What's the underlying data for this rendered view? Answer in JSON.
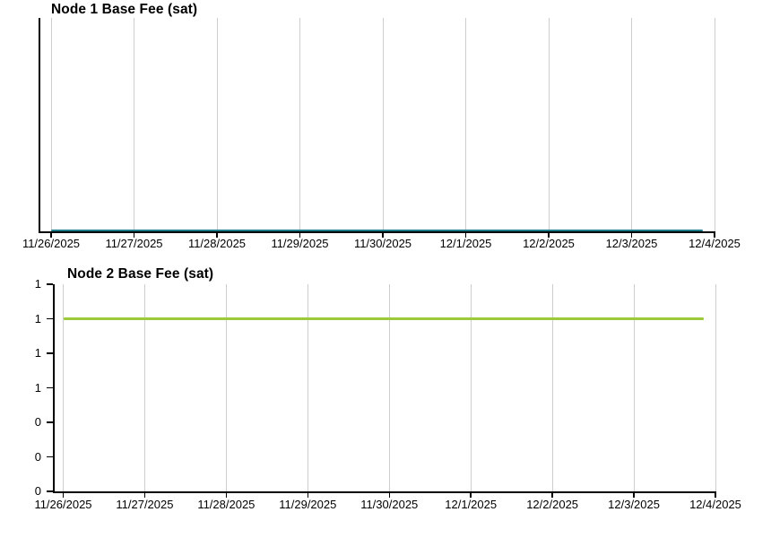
{
  "page": {
    "background": "#ffffff",
    "description": "Two stacked line charts of Lightning node base fees over time"
  },
  "colors": {
    "gridline": "#cdcdcd",
    "axis": "#000000",
    "text": "#000000",
    "node1_line": "#1d7c8a",
    "node2_line": "#9cca3b"
  },
  "chart_data": [
    {
      "type": "line",
      "title": "Node 1 Base Fee (sat)",
      "xlabel": "",
      "ylabel": "",
      "x_tick_labels": [
        "11/26/2025",
        "11/27/2025",
        "11/28/2025",
        "11/29/2025",
        "11/30/2025",
        "12/1/2025",
        "12/2/2025",
        "12/3/2025",
        "12/4/2025"
      ],
      "y_tick_labels": [],
      "y_tick_values": [],
      "ylim": null,
      "grid": "vertical-only",
      "legend": "none",
      "series": [
        {
          "name": "Node 1 base fee",
          "color": "#1d7c8a",
          "constant_value": 0,
          "x_start": "11/26/2025",
          "x_end_frac": 0.982,
          "note": "flat line at 0 sat along the x-axis, ending just before the 12/4/2025 tick"
        }
      ]
    },
    {
      "type": "line",
      "title": "Node 2 Base Fee (sat)",
      "xlabel": "",
      "ylabel": "",
      "x_tick_labels": [
        "11/26/2025",
        "11/27/2025",
        "11/28/2025",
        "11/29/2025",
        "11/30/2025",
        "12/1/2025",
        "12/2/2025",
        "12/3/2025",
        "12/4/2025"
      ],
      "y_tick_labels": [
        "1",
        "1",
        "1",
        "1",
        "0",
        "0",
        "0"
      ],
      "y_tick_values": [
        1.2,
        1.0,
        0.8,
        0.6,
        0.4,
        0.2,
        0
      ],
      "ylim": [
        0,
        1.2
      ],
      "grid": "vertical-only",
      "legend": "none",
      "series": [
        {
          "name": "Node 2 base fee",
          "color": "#9cca3b",
          "constant_value": 1,
          "x_start": "11/26/2025",
          "x_end_frac": 0.982,
          "note": "flat line at 1 sat across the range, ending just before the 12/4/2025 tick"
        }
      ]
    }
  ]
}
